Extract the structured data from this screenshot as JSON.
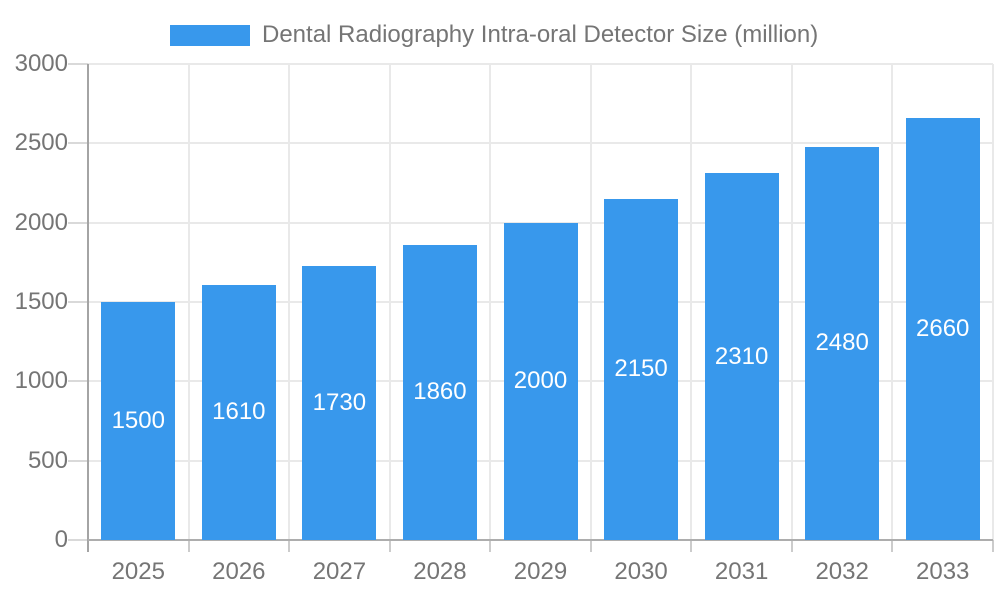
{
  "chart_data": {
    "type": "bar",
    "title": "Dental Radiography Intra-oral Detector Size (million)",
    "categories": [
      "2025",
      "2026",
      "2027",
      "2028",
      "2029",
      "2030",
      "2031",
      "2032",
      "2033"
    ],
    "values": [
      1500,
      1610,
      1730,
      1860,
      2000,
      2150,
      2310,
      2480,
      2660
    ],
    "series": [
      {
        "name": "Dental Radiography Intra-oral Detector Size (million)",
        "values": [
          1500,
          1610,
          1730,
          1860,
          2000,
          2150,
          2310,
          2480,
          2660
        ]
      }
    ],
    "xlabel": "",
    "ylabel": "",
    "ylim": [
      0,
      3000
    ],
    "yticks": [
      0,
      500,
      1000,
      1500,
      2000,
      2500,
      3000
    ],
    "grid": true,
    "legend_position": "top",
    "value_labels": "inside-center",
    "colors": {
      "bar": "#3898EC",
      "bar_label_text": "#ffffff",
      "axis_text": "#757575",
      "gridline": "#e9e9e9",
      "axis_line": "#a9a9a9"
    }
  }
}
